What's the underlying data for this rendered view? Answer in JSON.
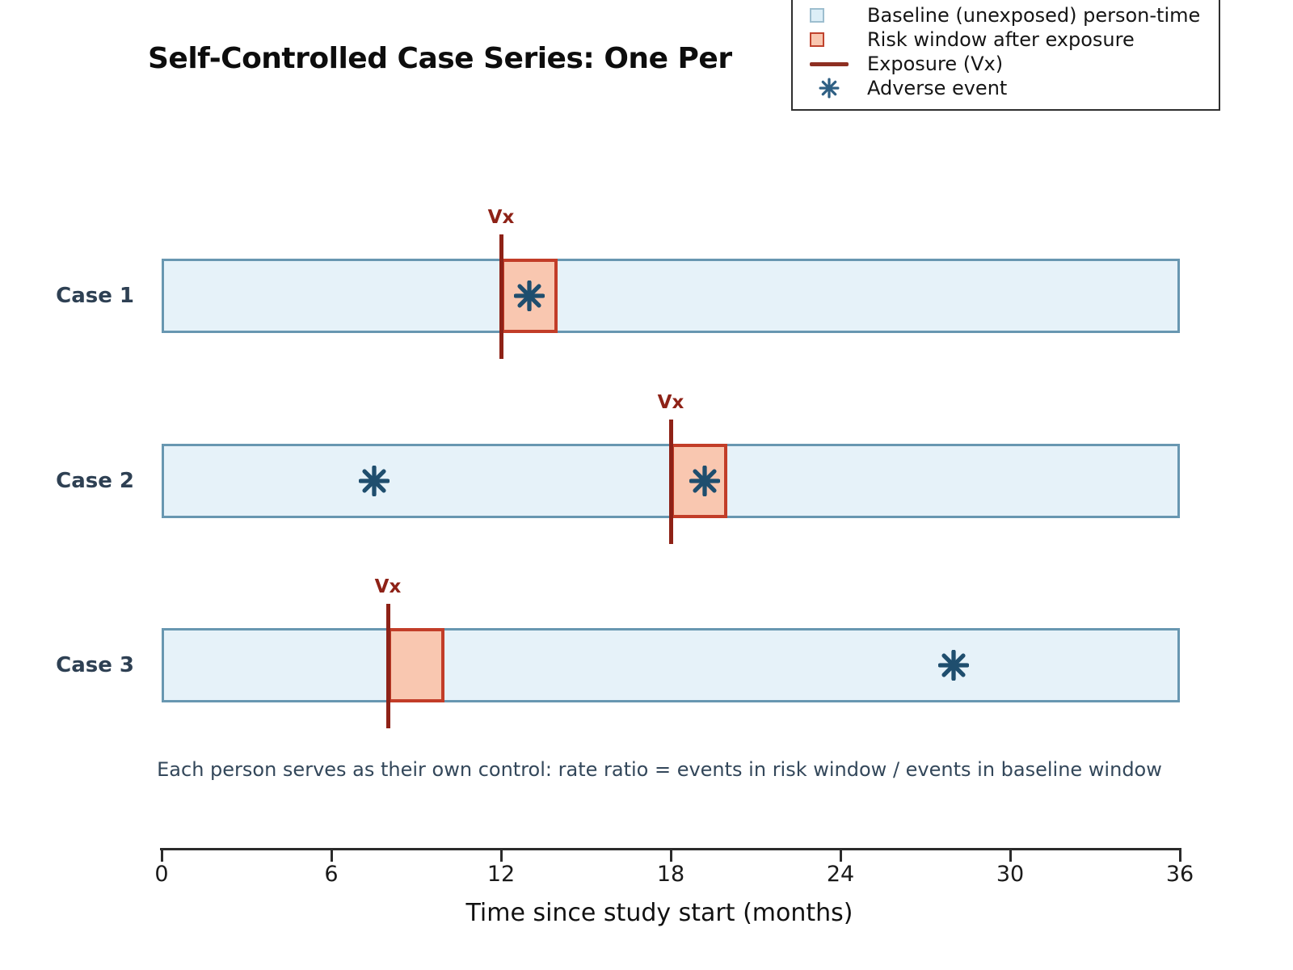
{
  "title": "Self-Controlled Case Series: One Per",
  "subtitle": "Each person serves as their own control: rate ratio = events in risk window / events in baseline window",
  "legend": {
    "baseline_label": "Baseline (unexposed) person-time",
    "risk_label": "Risk window after exposure",
    "exposure_label": "Exposure (Vx)",
    "event_label": "Adverse event"
  },
  "colors": {
    "baseline_fill": "#e6f2f9",
    "baseline_border": "#6897b1",
    "risk_fill": "#f9c7b0",
    "risk_border": "#c23d28",
    "exposure_line": "#8e2217",
    "event_marker": "#1f4e6e",
    "case_label_text": "#2e4053",
    "subtitle_text": "#33475a"
  },
  "chart_data": {
    "type": "timeline",
    "title": "Self-Controlled Case Series: One Per",
    "xlabel": "Time since study start (months)",
    "xlim": [
      0,
      36
    ],
    "x_ticks": [
      0,
      6,
      12,
      18,
      24,
      30,
      36
    ],
    "exposure_marker_label": "Vx",
    "rows": [
      {
        "label": "Case 1",
        "bar_months": [
          0,
          36
        ],
        "exposure_month": 12,
        "risk_window": [
          12,
          14
        ],
        "events": [
          13
        ]
      },
      {
        "label": "Case 2",
        "bar_months": [
          0,
          36
        ],
        "exposure_month": 18,
        "risk_window": [
          18,
          20
        ],
        "events": [
          7.5,
          19.2
        ]
      },
      {
        "label": "Case 3",
        "bar_months": [
          0,
          36
        ],
        "exposure_month": 8,
        "risk_window": [
          8,
          10
        ],
        "events": [
          28
        ]
      }
    ],
    "legend_entries": [
      "Baseline (unexposed) person-time",
      "Risk window after exposure",
      "Exposure (Vx)",
      "Adverse event"
    ],
    "annotation": "Each person serves as their own control: rate ratio = events in risk window / events in baseline window"
  }
}
